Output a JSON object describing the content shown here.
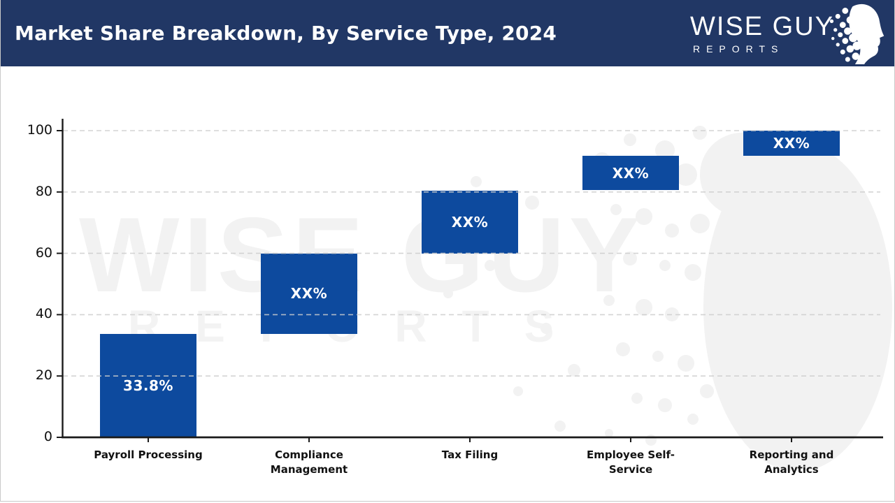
{
  "header": {
    "title": "Market Share Breakdown, By Service Type, 2024",
    "logo_primary": "WISE GUY",
    "logo_secondary": "REPORTS"
  },
  "watermark": {
    "line1": "WISE GUY",
    "line2": "REPORTS"
  },
  "chart_data": {
    "type": "bar",
    "subtype": "waterfall",
    "title": "Market Share Breakdown, By Service Type, 2024",
    "unit": "%",
    "categories": [
      "Payroll Processing",
      "Compliance\nManagement",
      "Tax Filing",
      "Employee Self-\nService",
      "Reporting and\nAnalytics"
    ],
    "segments": [
      {
        "category": "Payroll Processing",
        "start": 0,
        "end": 33.8,
        "label": "33.8%"
      },
      {
        "category": "Compliance Management",
        "start": 33.8,
        "end": 60.0,
        "label": "XX%"
      },
      {
        "category": "Tax Filing",
        "start": 60.0,
        "end": 80.3,
        "label": "XX%"
      },
      {
        "category": "Employee Self-Service",
        "start": 80.6,
        "end": 91.8,
        "label": "XX%"
      },
      {
        "category": "Reporting and Analytics",
        "start": 91.9,
        "end": 100.0,
        "label": "XX%"
      }
    ],
    "ylim": [
      0,
      104
    ],
    "yticks": [
      0,
      20,
      40,
      60,
      80,
      100
    ],
    "grid": "horizontal dashed, drawn over bars",
    "legend": "none",
    "bar_color": "#0d4a9e",
    "bar_label_color": "#ffffff"
  },
  "colors": {
    "header_bg": "#213765",
    "bar": "#0d4a9e",
    "grid": "#cccccc",
    "axis": "#1a1a1a",
    "watermark": "#f2f2f2",
    "page_border": "#c9c9c9"
  }
}
